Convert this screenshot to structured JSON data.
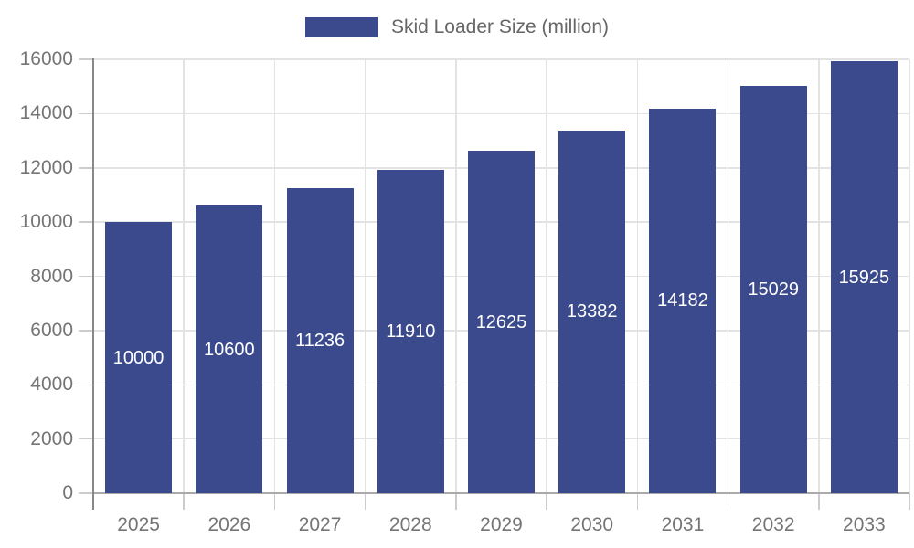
{
  "legend": {
    "label": "Skid Loader Size (million)"
  },
  "colors": {
    "bar": "#3A4A8C",
    "bar_label": "#FFFFFF",
    "grid": "#E3E3E3",
    "tick": "#CCCCCC",
    "y_axis_line": "#888888",
    "x_axis_line": "#AAAAAA",
    "tick_label": "#757575",
    "legend_text": "#666666",
    "background": "#FFFFFF"
  },
  "chart_data": {
    "type": "bar",
    "title": "",
    "legend": [
      "Skid Loader Size (million)"
    ],
    "legend_position": "top-center",
    "categories": [
      "2025",
      "2026",
      "2027",
      "2028",
      "2029",
      "2030",
      "2031",
      "2032",
      "2033"
    ],
    "values": [
      10000,
      10600,
      11236,
      11910,
      12625,
      13382,
      14182,
      15029,
      15925
    ],
    "bar_labels_visible": true,
    "bar_label_position": "middle-of-bar",
    "xlabel": "",
    "ylabel": "",
    "ylim": [
      0,
      16000
    ],
    "yticks": [
      0,
      2000,
      4000,
      6000,
      8000,
      10000,
      12000,
      14000,
      16000
    ],
    "grid": true
  }
}
